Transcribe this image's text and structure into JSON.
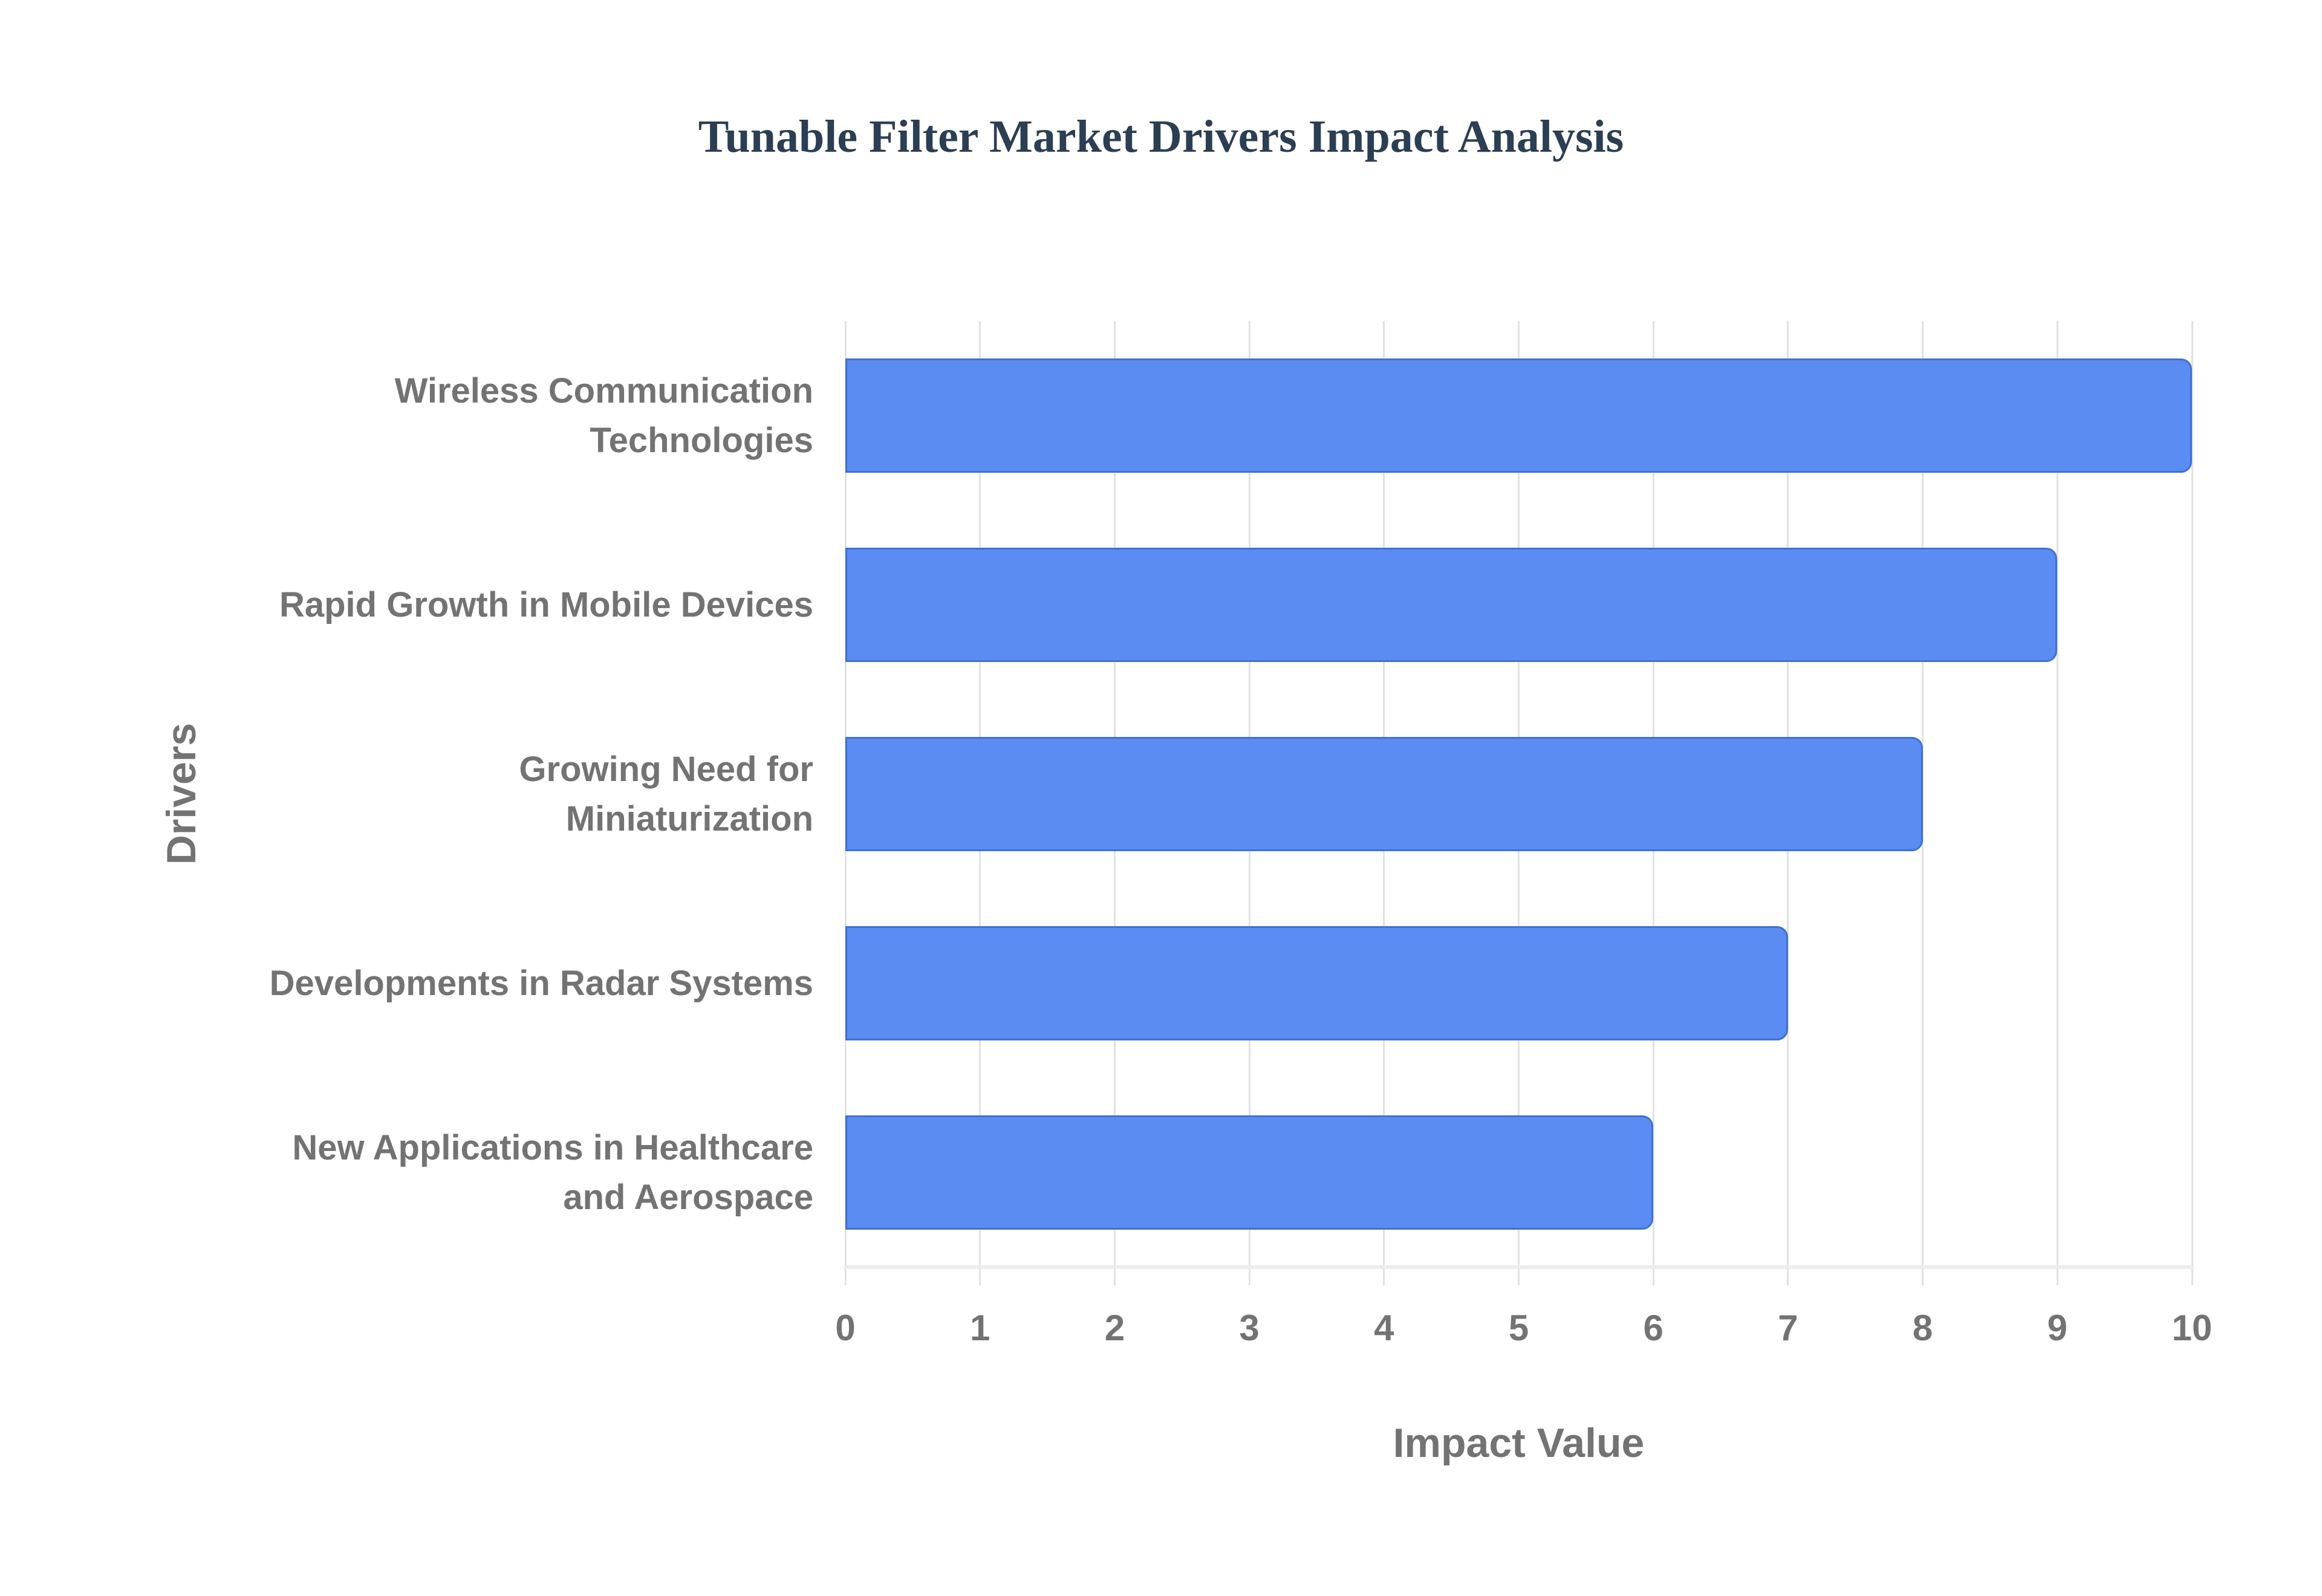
{
  "chart_data": {
    "type": "bar",
    "orientation": "horizontal",
    "title": "Tunable Filter Market Drivers Impact Analysis",
    "categories": [
      "Wireless Communication\nTechnologies",
      "Rapid Growth in Mobile Devices",
      "Growing Need for\nMiniaturization",
      "Developments in Radar Systems",
      "New Applications in Healthcare\nand Aerospace"
    ],
    "values": [
      10,
      9,
      8,
      7,
      6
    ],
    "xlabel": "Impact Value",
    "ylabel": "Drivers",
    "xlim": [
      0,
      10
    ],
    "xticks": [
      "0",
      "1",
      "2",
      "3",
      "4",
      "5",
      "6",
      "7",
      "8",
      "9",
      "10"
    ],
    "grid": true,
    "legend": false,
    "colors": {
      "bar_fill": "#5A8CF1",
      "bar_border": "#3E70DB",
      "grid_line": "#E2E2E2",
      "axis_line": "#ECECEC",
      "label_text": "#737373",
      "title_text": "#2B3F54"
    }
  }
}
